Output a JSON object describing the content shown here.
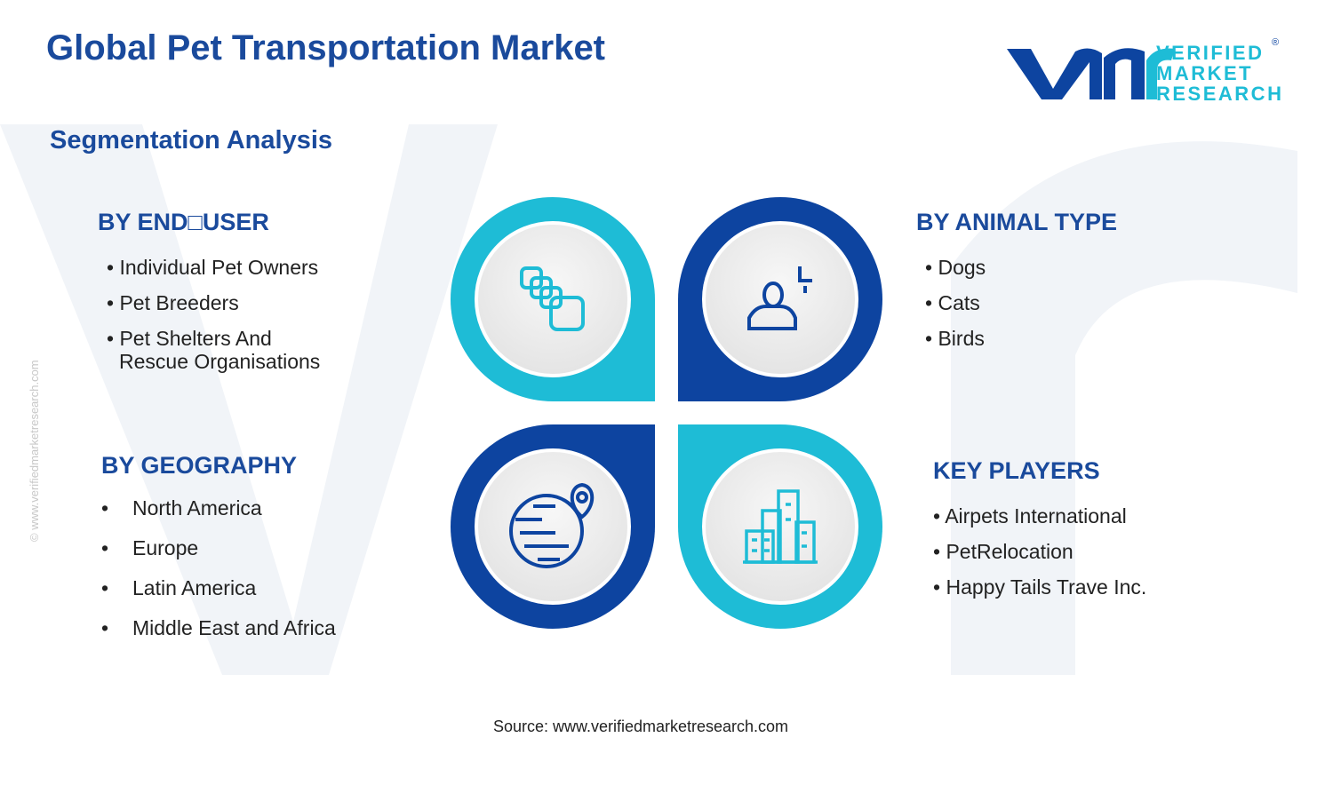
{
  "header": {
    "title": "Global Pet Transportation Market",
    "subtitle": "Segmentation Analysis"
  },
  "logo": {
    "line1": "VERIFIED",
    "line2": "MARKET",
    "line3": "RESEARCH",
    "mark": "®"
  },
  "watermark": "© www.verifiedmarketresearch.com",
  "sections": [
    {
      "title": "BY END□USER",
      "items": [
        "Individual Pet Owners",
        "Pet Breeders",
        "Pet Shelters And Rescue Organisations"
      ]
    },
    {
      "title": "BY ANIMAL TYPE",
      "items": [
        "Dogs",
        "Cats",
        "Birds"
      ]
    },
    {
      "title": "BY GEOGRAPHY",
      "items": [
        "North America",
        "Europe",
        "Latin America",
        "Middle East and Africa"
      ]
    },
    {
      "title": "KEY PLAYERS",
      "items": [
        "Airpets International",
        "PetRelocation",
        "Happy Tails Trave Inc."
      ]
    }
  ],
  "source": "Source: www.verifiedmarketresearch.com"
}
